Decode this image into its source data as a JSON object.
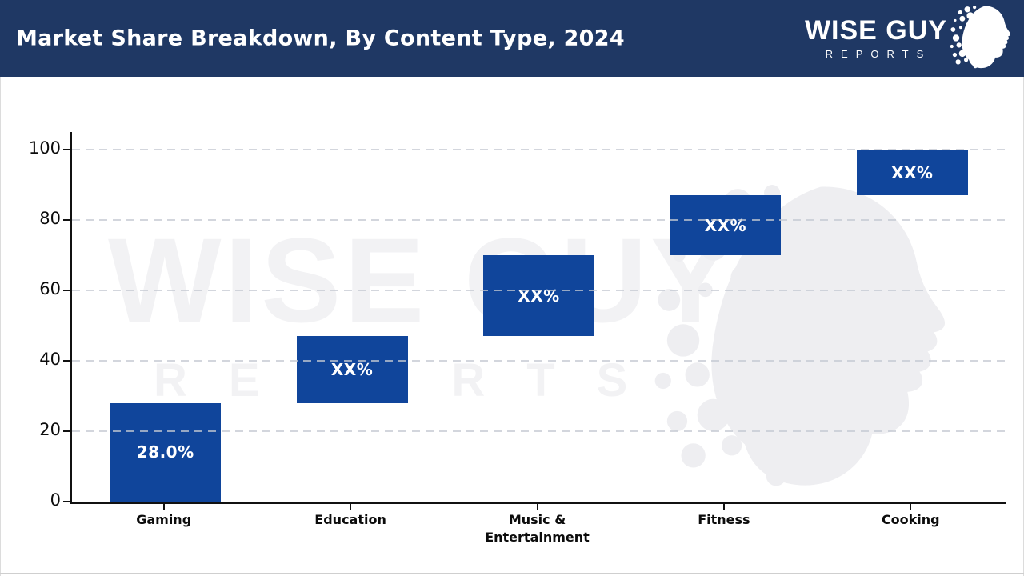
{
  "header": {
    "title": "Market Share Breakdown, By Content Type, 2024",
    "logo": {
      "line1": "WISE GUY",
      "line2": "REPORTS"
    }
  },
  "watermark": {
    "line1": "WISE GUY",
    "line2": "REPORTS"
  },
  "chart_data": {
    "type": "bar",
    "subtype": "waterfall",
    "title": "Market Share Breakdown, By Content Type, 2024",
    "categories": [
      "Gaming",
      "Education",
      "Music &\nEntertainment",
      "Fitness",
      "Cooking"
    ],
    "segments": [
      {
        "category": "Gaming",
        "start": 0,
        "end": 28,
        "label": "28.0%"
      },
      {
        "category": "Education",
        "start": 28,
        "end": 47,
        "label": "XX%"
      },
      {
        "category": "Music & Entertainment",
        "start": 47,
        "end": 70,
        "label": "XX%"
      },
      {
        "category": "Fitness",
        "start": 70,
        "end": 87,
        "label": "XX%"
      },
      {
        "category": "Cooking",
        "start": 87,
        "end": 100,
        "label": "XX%"
      }
    ],
    "yticks": [
      0,
      20,
      40,
      60,
      80,
      100
    ],
    "ylim": [
      0,
      105
    ],
    "xlabel": "",
    "ylabel": "",
    "legend": "none",
    "grid": "dashed-horizontal",
    "bar_color": "#10459B",
    "header_color": "#1F3864",
    "label_color": "#ffffff"
  }
}
